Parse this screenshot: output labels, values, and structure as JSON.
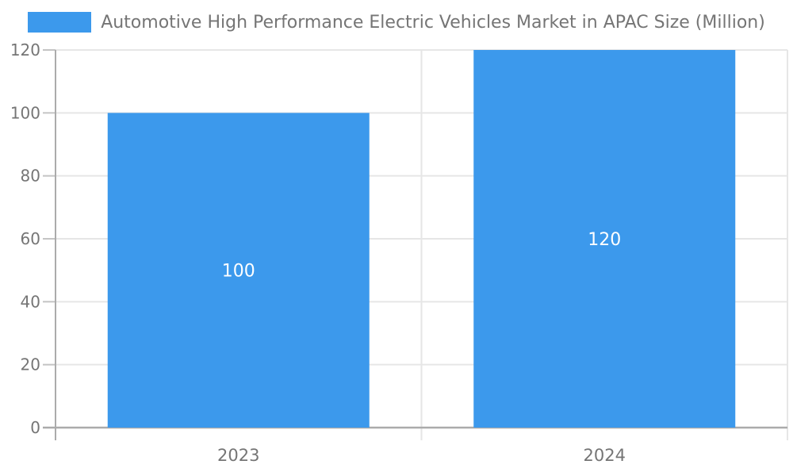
{
  "chart_data": {
    "type": "bar",
    "title": "",
    "legend_position": "top",
    "categories": [
      "2023",
      "2024"
    ],
    "series": [
      {
        "name": "Automotive High Performance Electric Vehicles Market in APAC Size (Million)",
        "values": [
          100,
          120
        ]
      }
    ],
    "data_labels": [
      "100",
      "120"
    ],
    "xlabel": "",
    "ylabel": "",
    "ylim": [
      0,
      120
    ],
    "yticks": [
      0,
      20,
      40,
      60,
      80,
      100,
      120
    ],
    "grid": true,
    "colors": {
      "bar": "#3C99EC",
      "grid": "#e6e6e6",
      "axis": "#ababab",
      "tick_stub": "#c4c4c4",
      "text": "#757575",
      "data_label": "#ffffff",
      "background": "#ffffff"
    }
  }
}
